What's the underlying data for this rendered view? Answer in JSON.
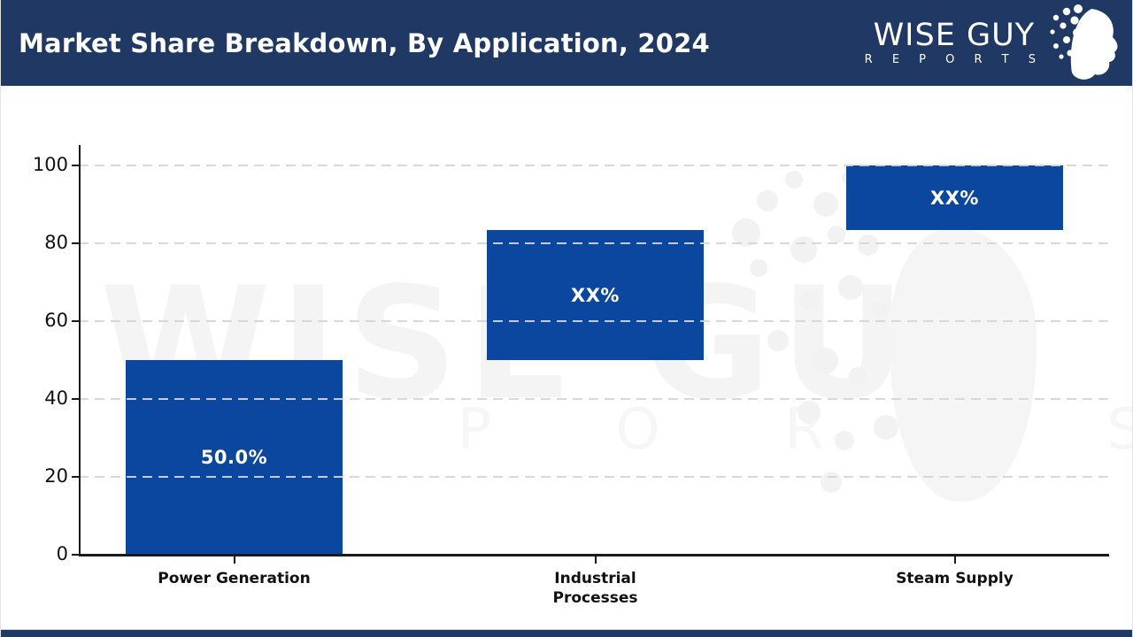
{
  "header": {
    "title": "Market Share Breakdown, By Application, 2024",
    "logo": {
      "line1": "WISE GUY",
      "line2": "R E P O R T S"
    }
  },
  "watermark": {
    "line1": "WISE GUY",
    "line2": "R E P O R T S"
  },
  "chart_data": {
    "type": "bar",
    "subtype": "waterfall",
    "title": "Market Share Breakdown, By Application, 2024",
    "categories": [
      "Power Generation",
      "Industrial Processes",
      "Steam Supply"
    ],
    "categories_lines": [
      [
        "Power Generation"
      ],
      [
        "Industrial",
        "Processes"
      ],
      [
        "Steam Supply"
      ]
    ],
    "segments": [
      {
        "category": "Power Generation",
        "start": 0,
        "end": 50,
        "label": "50.0%"
      },
      {
        "category": "Industrial Processes",
        "start": 50,
        "end": 83.3,
        "label": "XX%"
      },
      {
        "category": "Steam Supply",
        "start": 83.3,
        "end": 100,
        "label": "XX%"
      }
    ],
    "ylim": [
      0,
      100
    ],
    "yticks": [
      0,
      20,
      40,
      60,
      80,
      100
    ],
    "grid": "horizontal-dashed",
    "legend": "none",
    "xlabel": "",
    "ylabel": ""
  },
  "colors": {
    "header_bg": "#1F3864",
    "bar": "#0B479E",
    "grid": "#d6d6d6",
    "axis": "#1a1a1a",
    "bar_label": "#ffffff",
    "watermark": "#f4f4f4"
  }
}
